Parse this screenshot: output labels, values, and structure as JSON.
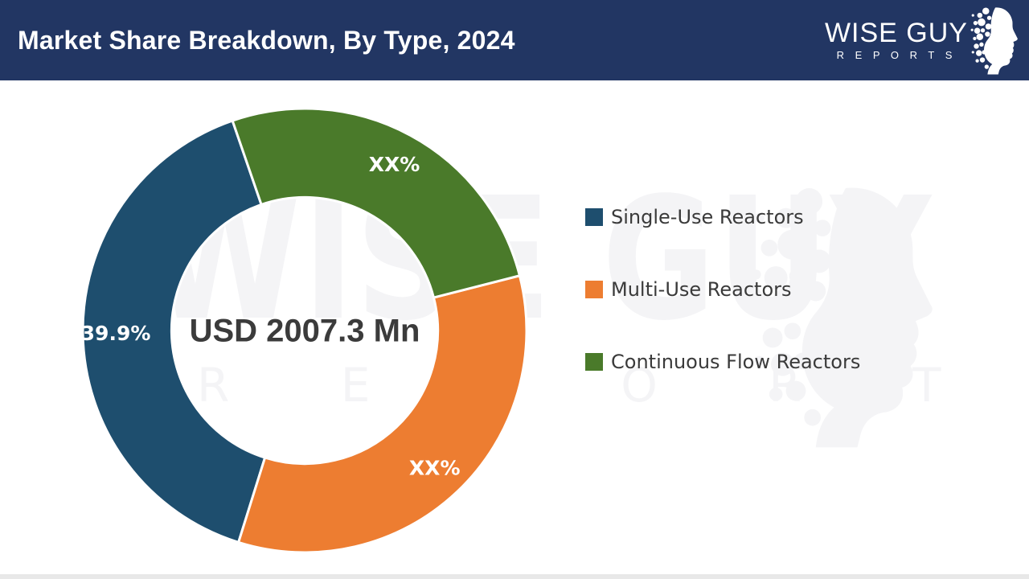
{
  "header": {
    "title": "Market Share Breakdown, By Type, 2024",
    "bg_color": "#223663",
    "logo_line1": "WISE GUY",
    "logo_line2": "R E P O R T S"
  },
  "chart_data": {
    "type": "pie",
    "subtype": "donut",
    "title": "Market Share Breakdown, By Type, 2024",
    "center_label": "USD 2007.3 Mn",
    "start_angle_deg_from_top": -19,
    "direction": "counterclockwise",
    "inner_radius_ratio": 0.6,
    "legend_position": "right",
    "segments": [
      {
        "label": "Single-Use Reactors",
        "display_label": "39.9%",
        "value_pct": 39.9,
        "color": "#1e4e6e"
      },
      {
        "label": "Multi-Use Reactors",
        "display_label": "XX%",
        "value_pct": 33.8,
        "color": "#ed7d31"
      },
      {
        "label": "Continuous Flow Reactors",
        "display_label": "XX%",
        "value_pct": 26.3,
        "color": "#4a7a2a"
      }
    ],
    "slice_label_color": "#ffffff",
    "center_label_color": "#3b3b3b"
  },
  "watermark": {
    "line1": "WISE GUY",
    "line2": "R E P O R T S",
    "color": "#f4f4f6"
  },
  "footer": {
    "bar_color": "#e8e8e8"
  }
}
